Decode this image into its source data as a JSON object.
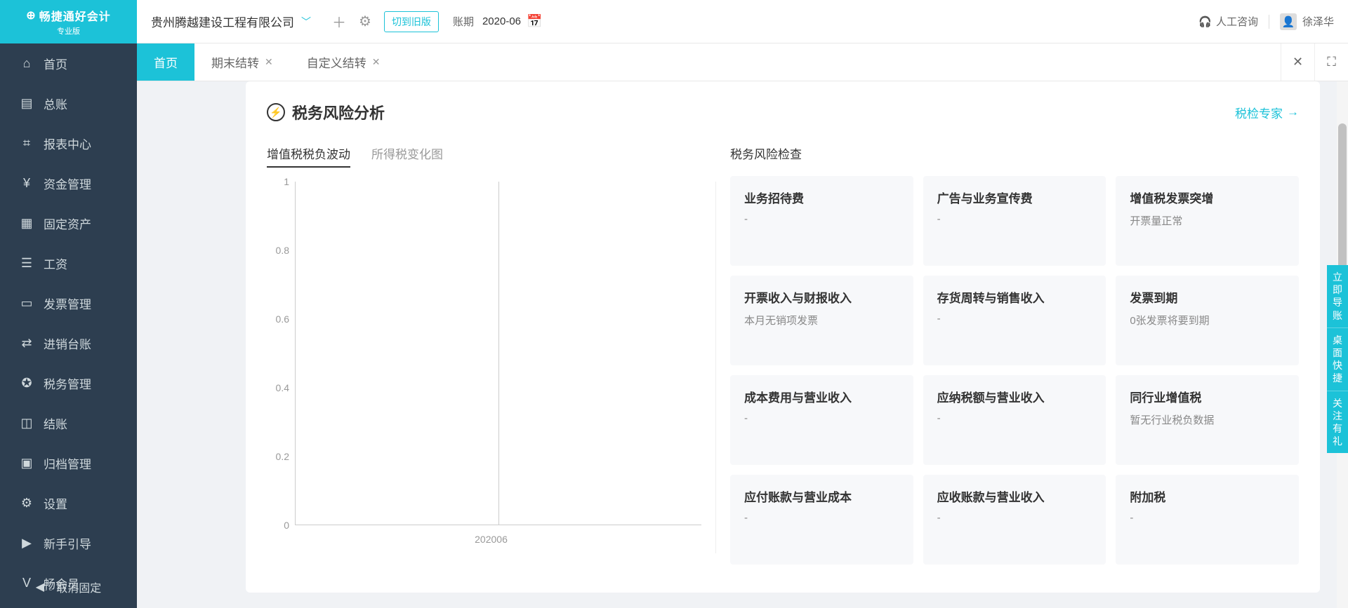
{
  "logo": {
    "main": "畅捷通好会计",
    "sub": "专业版"
  },
  "topbar": {
    "company": "贵州腾越建设工程有限公司",
    "old_version_btn": "切到旧版",
    "period_label": "账期",
    "period_value": "2020-06",
    "help_label": "人工咨询",
    "user_name": "徐泽华"
  },
  "sidebar": {
    "items": [
      {
        "icon": "⌂",
        "label": "首页"
      },
      {
        "icon": "▤",
        "label": "总账"
      },
      {
        "icon": "⌗",
        "label": "报表中心"
      },
      {
        "icon": "¥",
        "label": "资金管理"
      },
      {
        "icon": "▦",
        "label": "固定资产"
      },
      {
        "icon": "☰",
        "label": "工资"
      },
      {
        "icon": "▭",
        "label": "发票管理"
      },
      {
        "icon": "⇄",
        "label": "进销台账"
      },
      {
        "icon": "✪",
        "label": "税务管理"
      },
      {
        "icon": "◫",
        "label": "结账"
      },
      {
        "icon": "▣",
        "label": "归档管理"
      },
      {
        "icon": "⚙",
        "label": "设置"
      },
      {
        "icon": "▶",
        "label": "新手引导"
      },
      {
        "icon": "V",
        "label": "畅会员"
      }
    ],
    "footer": "取消固定"
  },
  "tabs": [
    {
      "label": "首页",
      "active": true,
      "closable": false
    },
    {
      "label": "期末结转",
      "active": false,
      "closable": true
    },
    {
      "label": "自定义结转",
      "active": false,
      "closable": true
    }
  ],
  "panel": {
    "title": "税务风险分析",
    "link": "税检专家",
    "chart_tabs": [
      {
        "label": "增值税税负波动",
        "active": true
      },
      {
        "label": "所得税变化图",
        "active": false
      }
    ],
    "chart": {
      "type": "line",
      "y_ticks": [
        "1",
        "0.8",
        "0.6",
        "0.4",
        "0.2",
        "0"
      ],
      "ylim": [
        0,
        1
      ],
      "x_labels": [
        "202006"
      ],
      "background": "#ffffff",
      "grid_color": "#f0f0f0",
      "axis_color": "#cccccc",
      "tick_fontsize": 14,
      "tick_color": "#999999"
    },
    "cards_title": "税务风险检查",
    "cards": [
      {
        "title": "业务招待费",
        "value": "-"
      },
      {
        "title": "广告与业务宣传费",
        "value": "-"
      },
      {
        "title": "增值税发票突增",
        "value": "开票量正常"
      },
      {
        "title": "开票收入与财报收入",
        "value": "本月无销项发票"
      },
      {
        "title": "存货周转与销售收入",
        "value": "-"
      },
      {
        "title": "发票到期",
        "value": "0张发票将要到期"
      },
      {
        "title": "成本费用与营业收入",
        "value": "-"
      },
      {
        "title": "应纳税额与营业收入",
        "value": "-"
      },
      {
        "title": "同行业增值税",
        "value": "暂无行业税负数据"
      },
      {
        "title": "应付账款与营业成本",
        "value": "-"
      },
      {
        "title": "应收账款与营业收入",
        "value": "-"
      },
      {
        "title": "附加税",
        "value": "-"
      }
    ]
  },
  "float_buttons": [
    "立即导账",
    "桌面快捷",
    "关注有礼"
  ],
  "colors": {
    "primary": "#1cc2d8",
    "sidebar_bg": "#2d3e50",
    "card_bg": "#f7f8fa"
  }
}
